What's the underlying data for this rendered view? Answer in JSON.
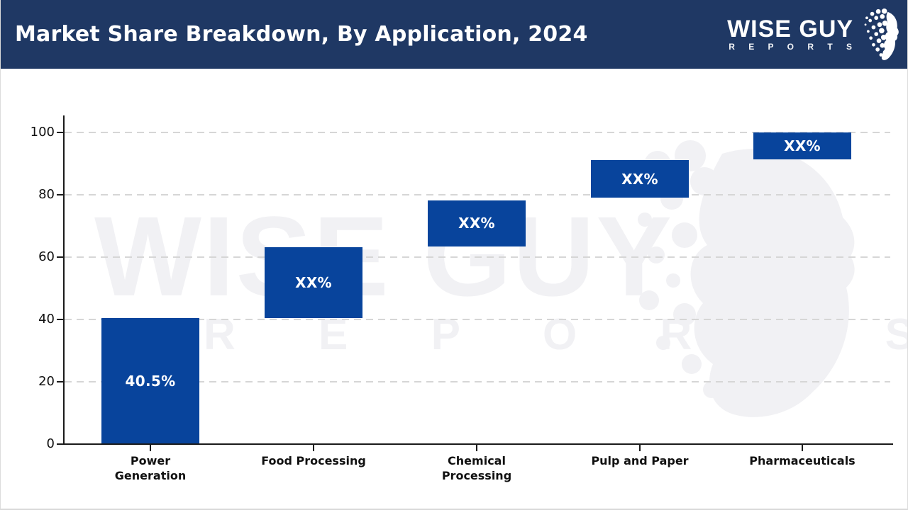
{
  "header": {
    "title": "Market Share Breakdown, By Application, 2024",
    "logo_line1": "WISE GUY",
    "logo_line2": "R E P O R T S"
  },
  "watermark": {
    "line1": "WISE GUY",
    "line2": "R E P O R T S"
  },
  "colors": {
    "header_bg": "#1f3864",
    "bar_fill": "#08449c",
    "bar_label_text": "#ffffff",
    "gridline": "#d6d6d6",
    "axis": "#1a1a1a",
    "watermark": "#f1f1f4"
  },
  "chart_data": {
    "type": "bar",
    "subtype": "waterfall-style floating bars",
    "title": "Market Share Breakdown, By Application, 2024",
    "xlabel": "",
    "ylabel": "",
    "categories": [
      "Power Generation",
      "Food Processing",
      "Chemical Processing",
      "Pulp and Paper",
      "Pharmaceuticals"
    ],
    "segments": [
      {
        "category": "Power Generation",
        "start": 0,
        "end": 40.5,
        "label": "40.5%"
      },
      {
        "category": "Food Processing",
        "start": 40.5,
        "end": 63.2,
        "label": "XX%"
      },
      {
        "category": "Chemical Processing",
        "start": 63.4,
        "end": 78.2,
        "label": "XX%"
      },
      {
        "category": "Pulp and Paper",
        "start": 79.1,
        "end": 91.1,
        "label": "XX%"
      },
      {
        "category": "Pharmaceuticals",
        "start": 91.3,
        "end": 99.9,
        "label": "XX%"
      }
    ],
    "y_ticks": [
      0,
      20,
      40,
      60,
      80,
      100
    ],
    "ylim": [
      0,
      105
    ],
    "grid": "horizontal dashed gridlines",
    "legend": "none"
  }
}
